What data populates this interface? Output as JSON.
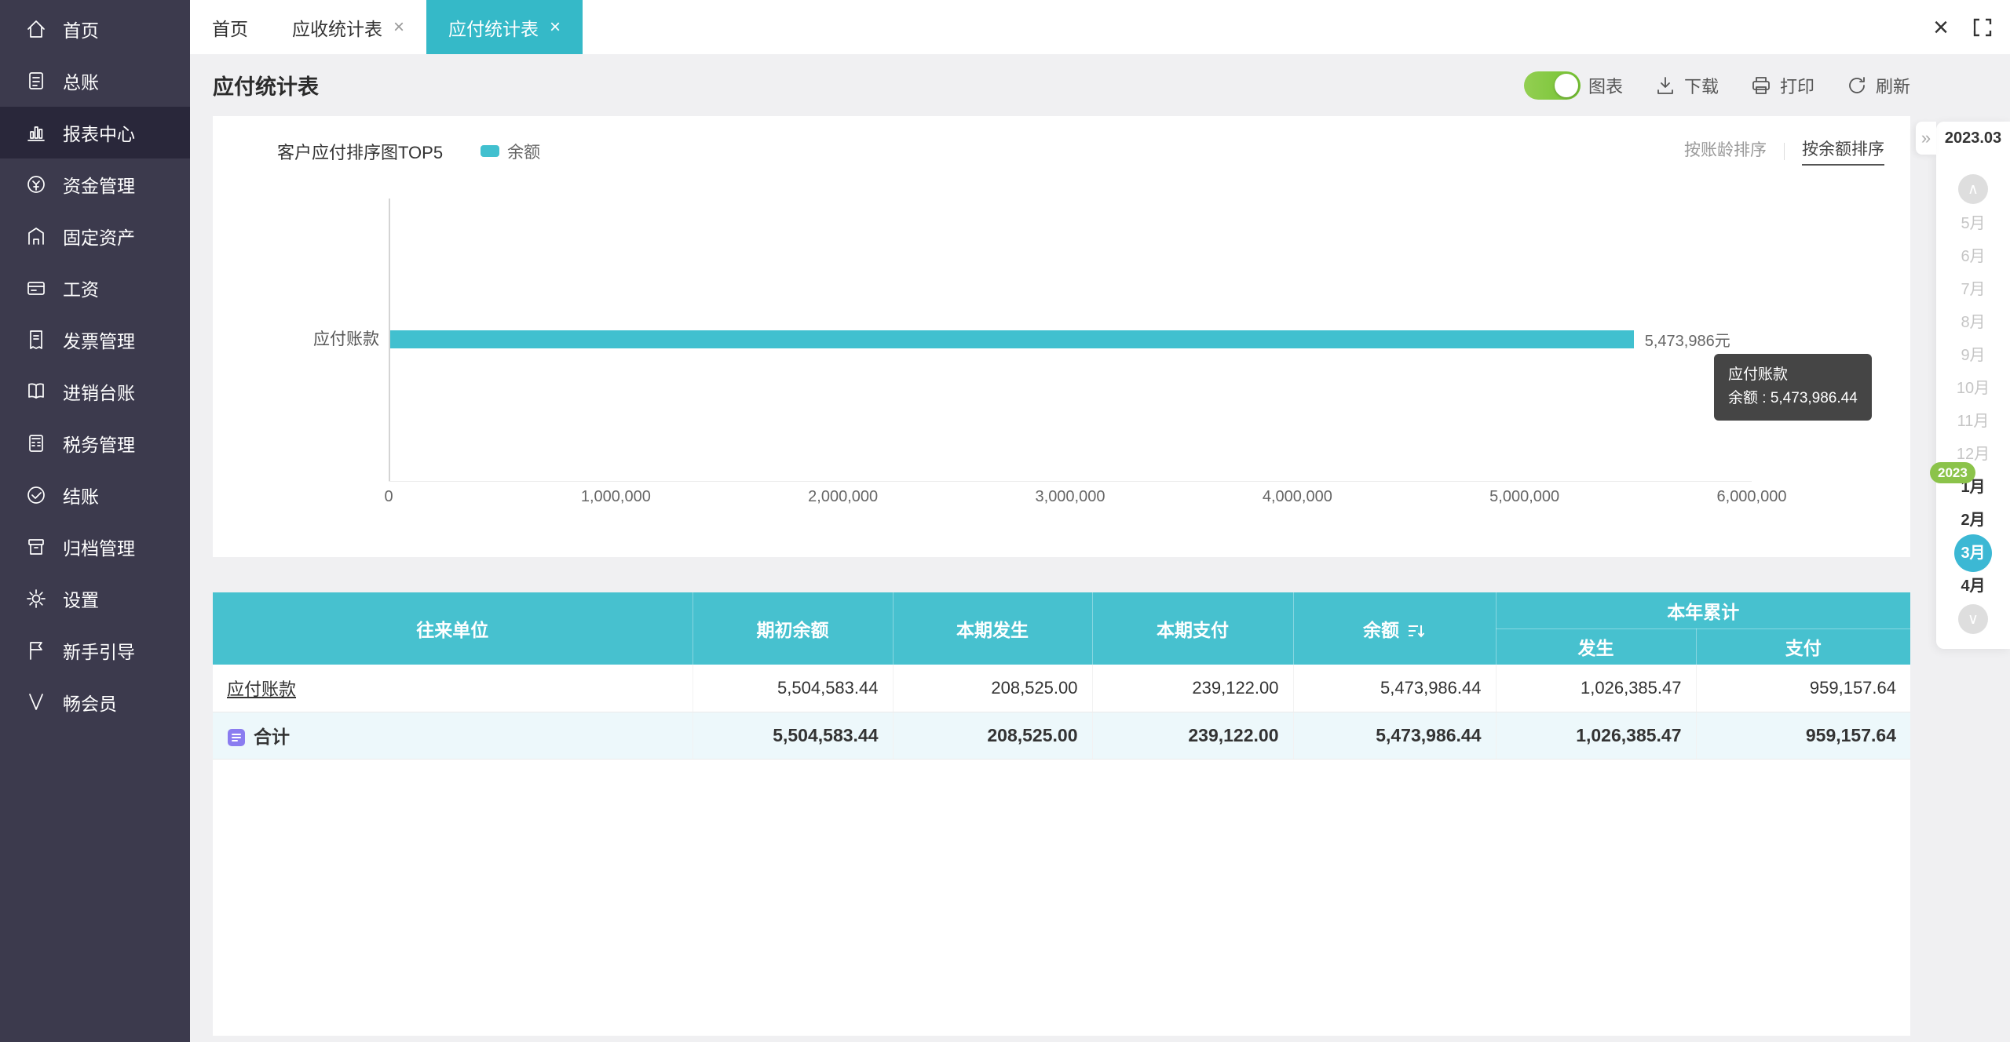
{
  "colors": {
    "accent": "#3cbccb",
    "sidebar_bg": "#3c3a4d",
    "toggle_green": "#74c231",
    "badge_green": "#8bc34a",
    "bar_color": "#41c0cf"
  },
  "sidebar": {
    "items": [
      {
        "label": "首页",
        "icon": "home-icon",
        "active": false
      },
      {
        "label": "总账",
        "icon": "general-ledger-icon",
        "active": false
      },
      {
        "label": "报表中心",
        "icon": "report-center-icon",
        "active": true
      },
      {
        "label": "资金管理",
        "icon": "fund-management-icon",
        "active": false
      },
      {
        "label": "固定资产",
        "icon": "fixed-assets-icon",
        "active": false
      },
      {
        "label": "工资",
        "icon": "salary-icon",
        "active": false
      },
      {
        "label": "发票管理",
        "icon": "invoice-icon",
        "active": false
      },
      {
        "label": "进销台账",
        "icon": "trade-ledger-icon",
        "active": false
      },
      {
        "label": "税务管理",
        "icon": "tax-icon",
        "active": false
      },
      {
        "label": "结账",
        "icon": "closing-icon",
        "active": false
      },
      {
        "label": "归档管理",
        "icon": "archive-icon",
        "active": false
      },
      {
        "label": "设置",
        "icon": "settings-icon",
        "active": false
      },
      {
        "label": "新手引导",
        "icon": "guide-icon",
        "active": false
      },
      {
        "label": "畅会员",
        "icon": "member-icon",
        "active": false
      }
    ]
  },
  "tabbar": {
    "tabs": [
      {
        "label": "首页",
        "closable": false,
        "active": false
      },
      {
        "label": "应收统计表",
        "closable": true,
        "active": false
      },
      {
        "label": "应付统计表",
        "closable": true,
        "active": true
      }
    ]
  },
  "toolbar": {
    "page_title": "应付统计表",
    "chart_toggle_label": "图表",
    "chart_toggle_on": true,
    "download_label": "下载",
    "print_label": "打印",
    "refresh_label": "刷新"
  },
  "chart_panel": {
    "title": "客户应付排序图TOP5",
    "legend_label": "余额",
    "sort_by_age_label": "按账龄排序",
    "sort_by_balance_label": "按余额排序",
    "active_sort": "按余额排序"
  },
  "chart_data": {
    "type": "bar",
    "orientation": "horizontal",
    "title": "客户应付排序图TOP5",
    "series_name": "余额",
    "categories": [
      "应付账款"
    ],
    "values": [
      5473986.44
    ],
    "value_labels": [
      "5,473,986元"
    ],
    "xlim": [
      0,
      6000000
    ],
    "x_ticks": [
      "0",
      "1,000,000",
      "2,000,000",
      "3,000,000",
      "4,000,000",
      "5,000,000",
      "6,000,000"
    ],
    "bar_color": "#41c0cf",
    "grid": false,
    "tooltip": {
      "title": "应付账款",
      "text": "余额 : 5,473,986.44"
    }
  },
  "table": {
    "headers": {
      "unit": "往来单位",
      "opening": "期初余额",
      "current_occur": "本期发生",
      "current_pay": "本期支付",
      "balance": "余额",
      "year_group": "本年累计",
      "year_occur": "发生",
      "year_pay": "支付"
    },
    "rows": [
      {
        "unit": "应付账款",
        "opening": "5,504,583.44",
        "current_occur": "208,525.00",
        "current_pay": "239,122.00",
        "balance": "5,473,986.44",
        "year_occur": "1,026,385.47",
        "year_pay": "959,157.64"
      }
    ],
    "total": {
      "unit": "合计",
      "opening": "5,504,583.44",
      "current_occur": "208,525.00",
      "current_pay": "239,122.00",
      "balance": "5,473,986.44",
      "year_occur": "1,026,385.47",
      "year_pay": "959,157.64"
    }
  },
  "month_panel": {
    "current": "2023.03",
    "year_badge": "2023",
    "months": [
      {
        "label": "5月",
        "state": "disabled"
      },
      {
        "label": "6月",
        "state": "disabled"
      },
      {
        "label": "7月",
        "state": "disabled"
      },
      {
        "label": "8月",
        "state": "disabled"
      },
      {
        "label": "9月",
        "state": "disabled"
      },
      {
        "label": "10月",
        "state": "disabled"
      },
      {
        "label": "11月",
        "state": "disabled"
      },
      {
        "label": "12月",
        "state": "disabled"
      },
      {
        "label": "1月",
        "state": "normal"
      },
      {
        "label": "2月",
        "state": "normal"
      },
      {
        "label": "3月",
        "state": "active"
      },
      {
        "label": "4月",
        "state": "normal"
      }
    ]
  }
}
